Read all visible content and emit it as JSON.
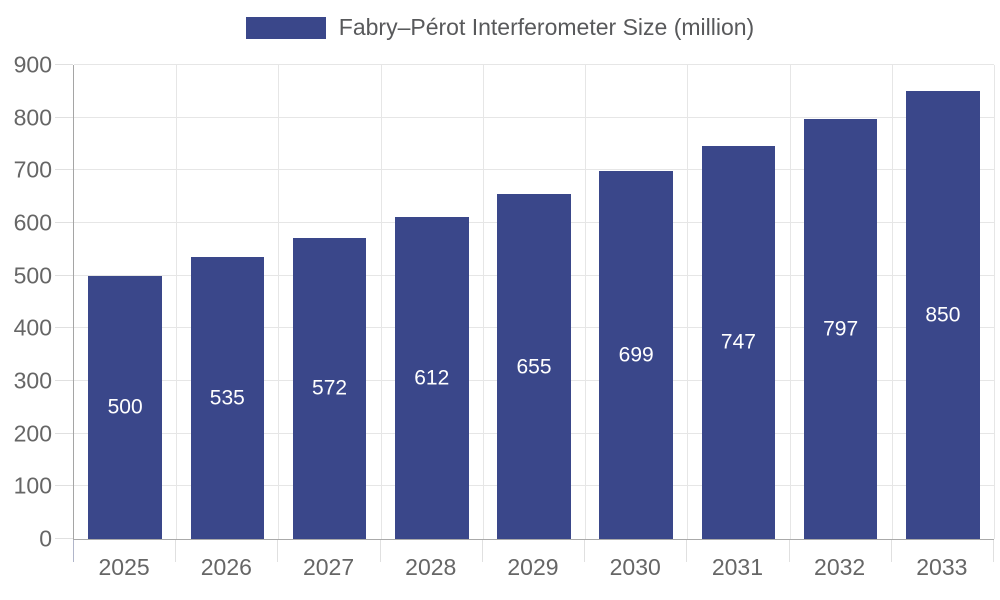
{
  "legend": {
    "label": "Fabry–Pérot Interferometer Size (million)"
  },
  "chart_data": {
    "type": "bar",
    "title": "Fabry–Pérot Interferometer Size (million)",
    "categories": [
      "2025",
      "2026",
      "2027",
      "2028",
      "2029",
      "2030",
      "2031",
      "2032",
      "2033"
    ],
    "values": [
      500,
      535,
      572,
      612,
      655,
      699,
      747,
      797,
      850
    ],
    "xlabel": "",
    "ylabel": "",
    "ylim": [
      0,
      900
    ],
    "ytick_step": 100,
    "grid": true,
    "legend_position": "top",
    "colors": {
      "bar": "#3A478A",
      "bar_value_label": "#ffffff",
      "axis_label_text": "#666666",
      "legend_text": "#58595B",
      "gridline": "#e6e6e6",
      "axis_line": "#a5a5a5"
    }
  }
}
